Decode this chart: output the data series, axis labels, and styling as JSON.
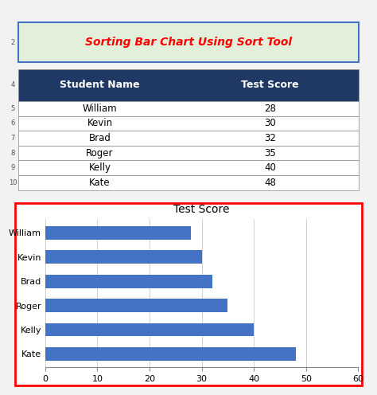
{
  "title_text": "Sorting Bar Chart Using Sort Tool",
  "title_color": "#FF0000",
  "title_bg_color": "#E2EFDA",
  "table_header_bg": "#1F3864",
  "table_header_fg": "#FFFFFF",
  "table_col1": "Student Name",
  "table_col2": "Test Score",
  "table_data": [
    [
      "William",
      28
    ],
    [
      "Kevin",
      30
    ],
    [
      "Brad",
      32
    ],
    [
      "Roger",
      35
    ],
    [
      "Kelly",
      40
    ],
    [
      "Kate",
      48
    ]
  ],
  "chart_title": "Test Score",
  "chart_names": [
    "Kate",
    "Kelly",
    "Roger",
    "Brad",
    "Kevin",
    "William"
  ],
  "chart_values": [
    48,
    40,
    35,
    32,
    30,
    28
  ],
  "bar_color": "#4472C4",
  "xlim": [
    0,
    60
  ],
  "xticks": [
    0,
    10,
    20,
    30,
    40,
    50,
    60
  ],
  "chart_border_color": "#FF0000",
  "bg_color": "#FFFFFF",
  "excel_bg": "#F2F2F2",
  "grid_line_color": "#C0C0C0",
  "divider_color": "#888888"
}
